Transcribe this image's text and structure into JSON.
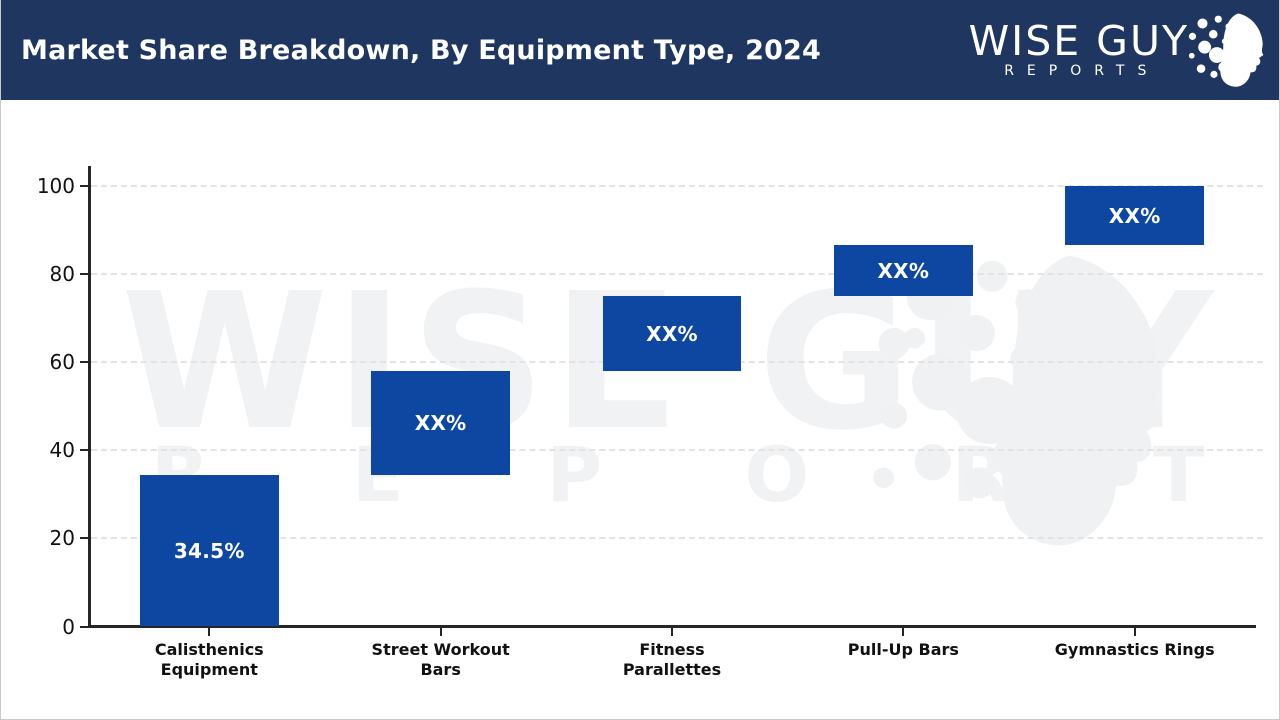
{
  "header": {
    "title": "Market Share Breakdown, By Equipment Type, 2024",
    "logo": {
      "line1": "WISE GUY",
      "line2": "REPORTS"
    }
  },
  "watermark": {
    "line1": "WISE GUY",
    "line2": "R E P O R T S"
  },
  "colors": {
    "header_bg": "#1f3660",
    "bar": "#0d47a1",
    "bar_label": "#ffffff",
    "grid": "#e3e3e4",
    "axis": "#262626",
    "watermark": "#f1f2f4"
  },
  "chart_data": {
    "type": "bar",
    "subtype": "waterfall",
    "title": "Market Share Breakdown, By Equipment Type, 2024",
    "xlabel": "",
    "ylabel": "",
    "ylim": [
      0,
      100
    ],
    "yticks": [
      0,
      20,
      40,
      60,
      80,
      100
    ],
    "grid": "horizontal-dashed",
    "legend": "none",
    "categories": [
      "Calisthenics Equipment",
      "Street Workout Bars",
      "Fitness Parallettes",
      "Pull-Up Bars",
      "Gymnastics Rings"
    ],
    "category_lines": [
      [
        "Calisthenics",
        "Equipment"
      ],
      [
        "Street Workout",
        "Bars"
      ],
      [
        "Fitness",
        "Parallettes"
      ],
      [
        "Pull-Up Bars"
      ],
      [
        "Gymnastics Rings"
      ]
    ],
    "segments": [
      {
        "start": 0,
        "end": 34.5,
        "value": 34.5,
        "label": "34.5%"
      },
      {
        "start": 34.5,
        "end": 58,
        "value": 23.5,
        "label": "XX%"
      },
      {
        "start": 58,
        "end": 75,
        "value": 17,
        "label": "XX%"
      },
      {
        "start": 75,
        "end": 86.5,
        "value": 11.5,
        "label": "XX%"
      },
      {
        "start": 86.5,
        "end": 100,
        "value": 13.5,
        "label": "XX%"
      }
    ]
  }
}
